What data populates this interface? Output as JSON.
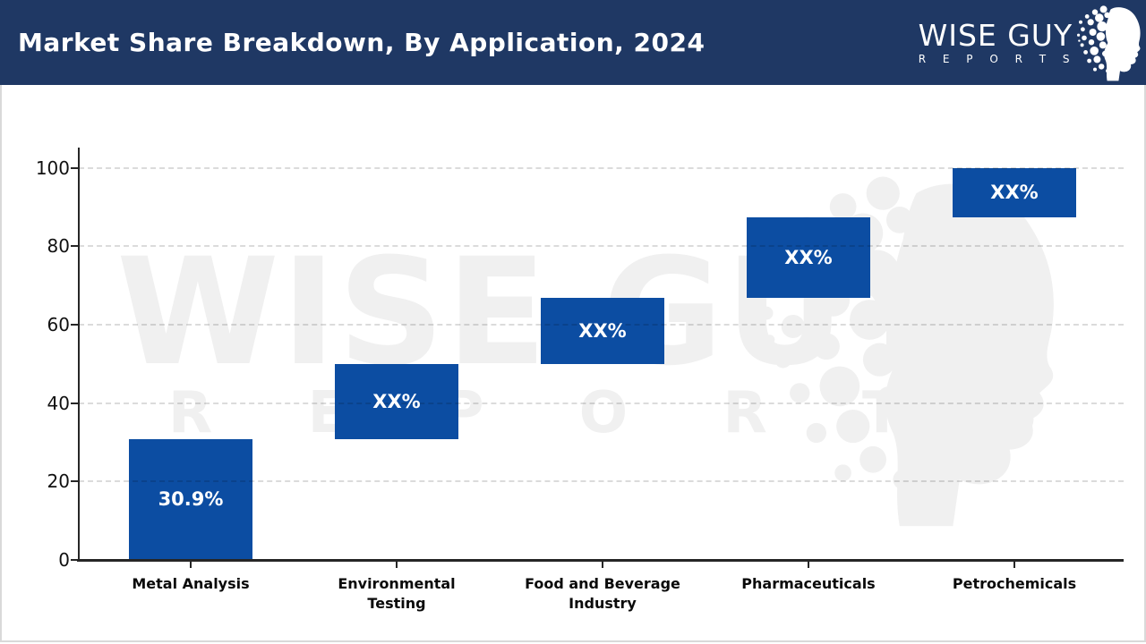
{
  "header": {
    "title": "Market Share Breakdown, By Application, 2024",
    "logo": {
      "line1": "WISE GUY",
      "line2": "R E P O R T S"
    }
  },
  "watermark": {
    "line1": "WISE GUY",
    "line2": "R E P O R T S"
  },
  "colors": {
    "header_bg": "#1f3864",
    "bar": "#0c4da2",
    "bar_label": "#ffffff",
    "grid_dash": "rgba(0,0,0,0.14)",
    "axis": "#262626",
    "watermark": "#f0f0f0",
    "border": "#d9d9d9"
  },
  "chart_data": {
    "type": "bar",
    "subtype": "floating-waterfall",
    "title": "Market Share Breakdown, By Application, 2024",
    "categories": [
      "Metal Analysis",
      "Environmental Testing",
      "Food and Beverage Industry",
      "Pharmaceuticals",
      "Petrochemicals"
    ],
    "category_lines": [
      [
        "Metal Analysis"
      ],
      [
        "Environmental",
        "Testing"
      ],
      [
        "Food and Beverage",
        "Industry"
      ],
      [
        "Pharmaceuticals"
      ],
      [
        "Petrochemicals"
      ]
    ],
    "segments": [
      {
        "category": "Metal Analysis",
        "start": 0,
        "end": 30.9,
        "label": "30.9%"
      },
      {
        "category": "Environmental Testing",
        "start": 30.9,
        "end": 50.0,
        "label": "XX%"
      },
      {
        "category": "Food and Beverage Industry",
        "start": 50.0,
        "end": 66.9,
        "label": "XX%"
      },
      {
        "category": "Pharmaceuticals",
        "start": 66.9,
        "end": 87.4,
        "label": "XX%"
      },
      {
        "category": "Petrochemicals",
        "start": 87.4,
        "end": 100.0,
        "label": "XX%"
      }
    ],
    "xlabel": "",
    "ylabel": "",
    "yticks": [
      0,
      20,
      40,
      60,
      80,
      100
    ],
    "ylim": [
      0,
      105
    ],
    "grid": "horizontal-dashed",
    "legend": "none"
  }
}
